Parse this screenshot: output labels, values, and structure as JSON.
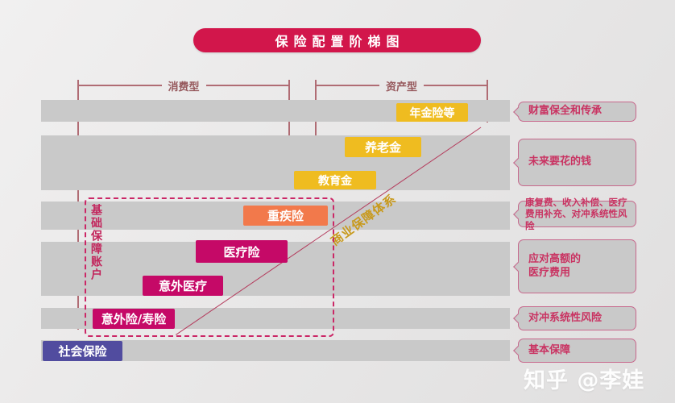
{
  "title": "保险配置阶梯图",
  "brackets": {
    "left_label": "消费型",
    "right_label": "资产型"
  },
  "group_label": "基础保障账户",
  "diagonal_label": "商业保障体系",
  "products": {
    "annuity": "年金险等",
    "pension": "养老金",
    "education": "教育金",
    "critical_illness": "重疾险",
    "medical": "医疗险",
    "accident_medical": "意外医疗",
    "accident_life": "意外险/寿险",
    "social_insurance": "社会保险"
  },
  "callouts": [
    {
      "text": "财富保全和传承"
    },
    {
      "text": "未来要花的钱"
    },
    {
      "text": "康复费、收入补偿、医疗\n费用补充、对冲系统性风险"
    },
    {
      "text": "应对高额的\n医疗费用"
    },
    {
      "text": "对冲系统性风险"
    },
    {
      "text": "基本保障"
    }
  ],
  "watermark": "知乎 @李娃",
  "colors": {
    "title_banner": "#d2164b",
    "asset_yellow": "#efbc20",
    "critical_orange": "#f2794b",
    "consumption_magenta": "#c50967",
    "social_purple": "#514c9f",
    "band_gray": "#c9c9c9",
    "callout_crimson": "#c93362",
    "diagonal_gold": "#c89a1e",
    "dashed_border": "#cb2766"
  }
}
